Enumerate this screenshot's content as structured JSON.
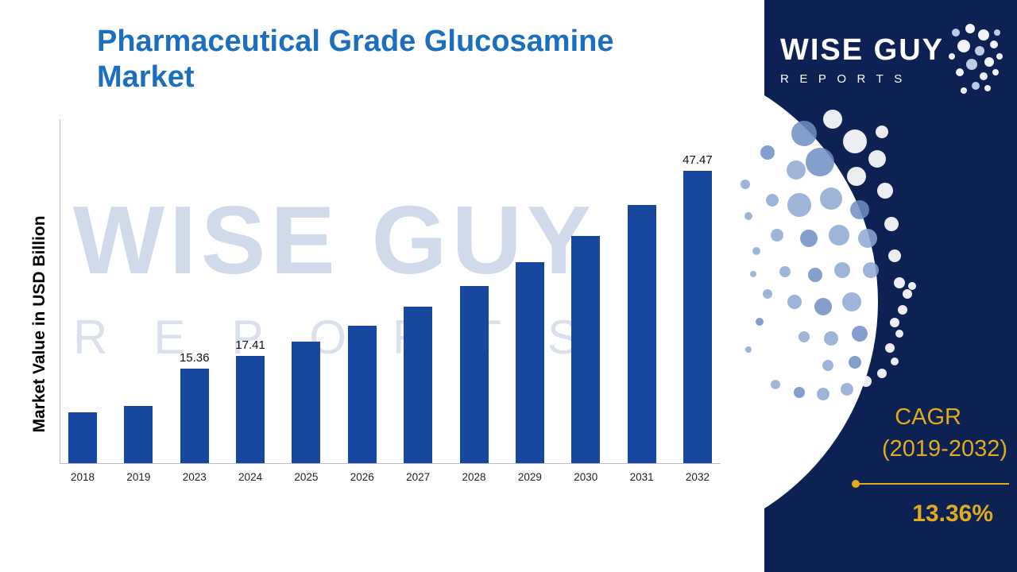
{
  "watermark": {
    "line1": "WISE GUY",
    "line2": "REPORTS"
  },
  "logo": {
    "line1": "WISE GUY",
    "line2": "REPORTS"
  },
  "cagr": {
    "label": "CAGR",
    "range": "(2019-2032)",
    "value": "13.36%"
  },
  "colors": {
    "title_blue": "#1B6FBE",
    "bar_blue": "#17479E",
    "panel_navy": "#0D2153",
    "accent_gold": "#DFAC1E",
    "watermark_blue": "#AFC0DE"
  },
  "chart_data": {
    "type": "bar",
    "title": "Pharmaceutical Grade Glucosamine Market",
    "xlabel": "",
    "ylabel": "Market Value in USD Billion",
    "categories": [
      "2018",
      "2019",
      "2023",
      "2024",
      "2025",
      "2026",
      "2027",
      "2028",
      "2029",
      "2030",
      "2031",
      "2032"
    ],
    "values": [
      8.2,
      9.3,
      15.36,
      17.41,
      19.74,
      22.37,
      25.36,
      28.75,
      32.59,
      36.94,
      41.88,
      47.47
    ],
    "data_labels": {
      "2023": "15.36",
      "2024": "17.41",
      "2032": "47.47"
    },
    "ylim": [
      0,
      50
    ],
    "grid": false,
    "legend": false,
    "bar_color": "#17479E"
  }
}
